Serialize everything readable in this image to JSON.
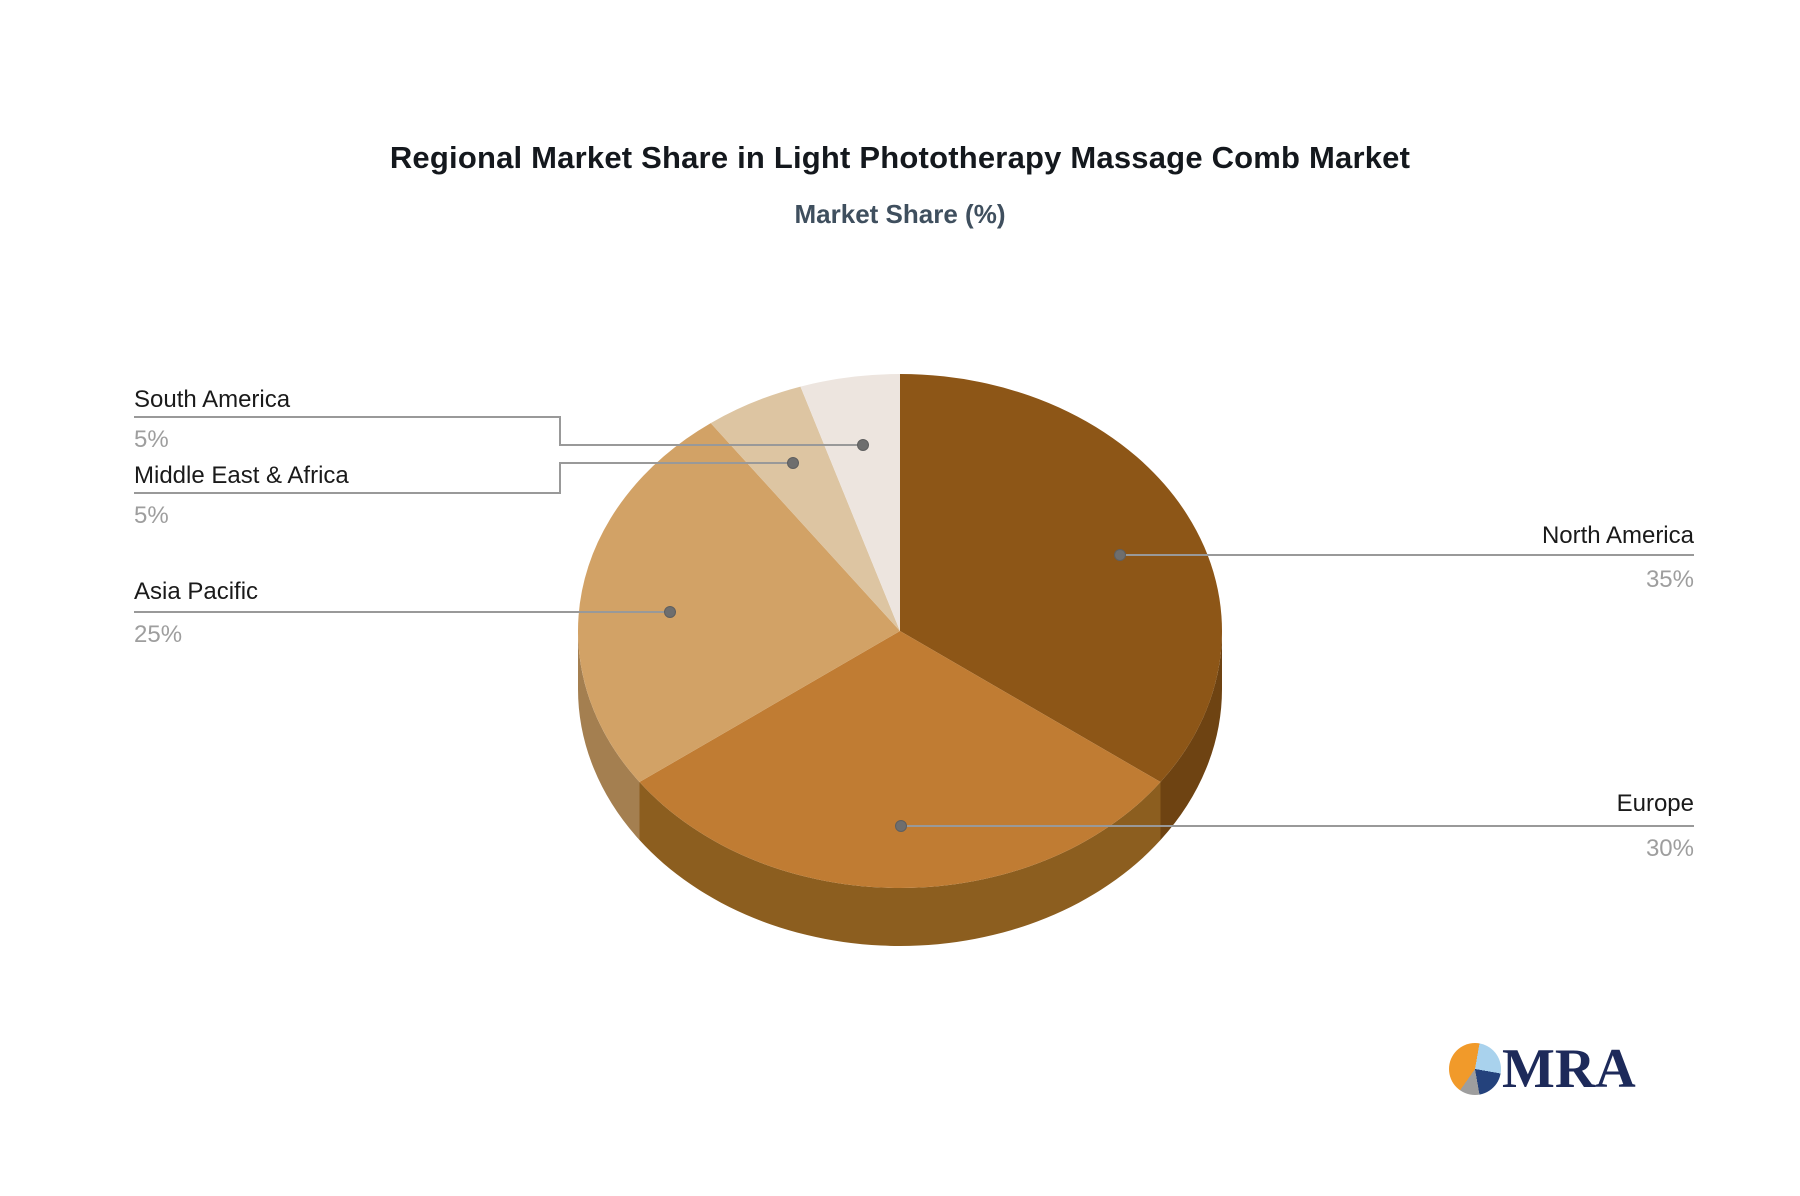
{
  "title": "Regional Market Share in Light Phototherapy Massage Comb Market",
  "subtitle": "Market Share (%)",
  "chart_data": {
    "type": "pie",
    "title": "Regional Market Share in Light Phototherapy Massage Comb Market",
    "subtitle": "Market Share (%)",
    "unit": "%",
    "style": "3d-pie",
    "start_angle_deg": 0,
    "clockwise": true,
    "labels": [
      "North America",
      "Europe",
      "Asia Pacific",
      "Middle East & Africa",
      "South America"
    ],
    "values": [
      35,
      30,
      25,
      5,
      5
    ],
    "slices": [
      {
        "label": "North America",
        "value": 35,
        "pct": "35%",
        "color": "#8D5617",
        "side_color": "#6E4312"
      },
      {
        "label": "Europe",
        "value": 30,
        "pct": "30%",
        "color": "#C07C33",
        "side_color": "#8C5E1F"
      },
      {
        "label": "Asia Pacific",
        "value": 25,
        "pct": "25%",
        "color": "#D2A266",
        "side_color": "#A47F50"
      },
      {
        "label": "Middle East & Africa",
        "value": 5,
        "pct": "5%",
        "color": "#DDC5A2",
        "side_color": "#BCA27D"
      },
      {
        "label": "South America",
        "value": 5,
        "pct": "5%",
        "color": "#EDE5DF",
        "side_color": "#CBBFB5"
      }
    ],
    "leader_line_color": "#999999",
    "leader_dot_color": "#6e6e6e",
    "label_text_color": "#1a1a1a",
    "pct_text_color": "#9e9e9e"
  },
  "logo": {
    "text": "MRA",
    "text_color": "#1d2a5a",
    "icon_colors": [
      "#F19A2A",
      "#A9D2ED",
      "#24427C",
      "#9E9E9E"
    ]
  }
}
